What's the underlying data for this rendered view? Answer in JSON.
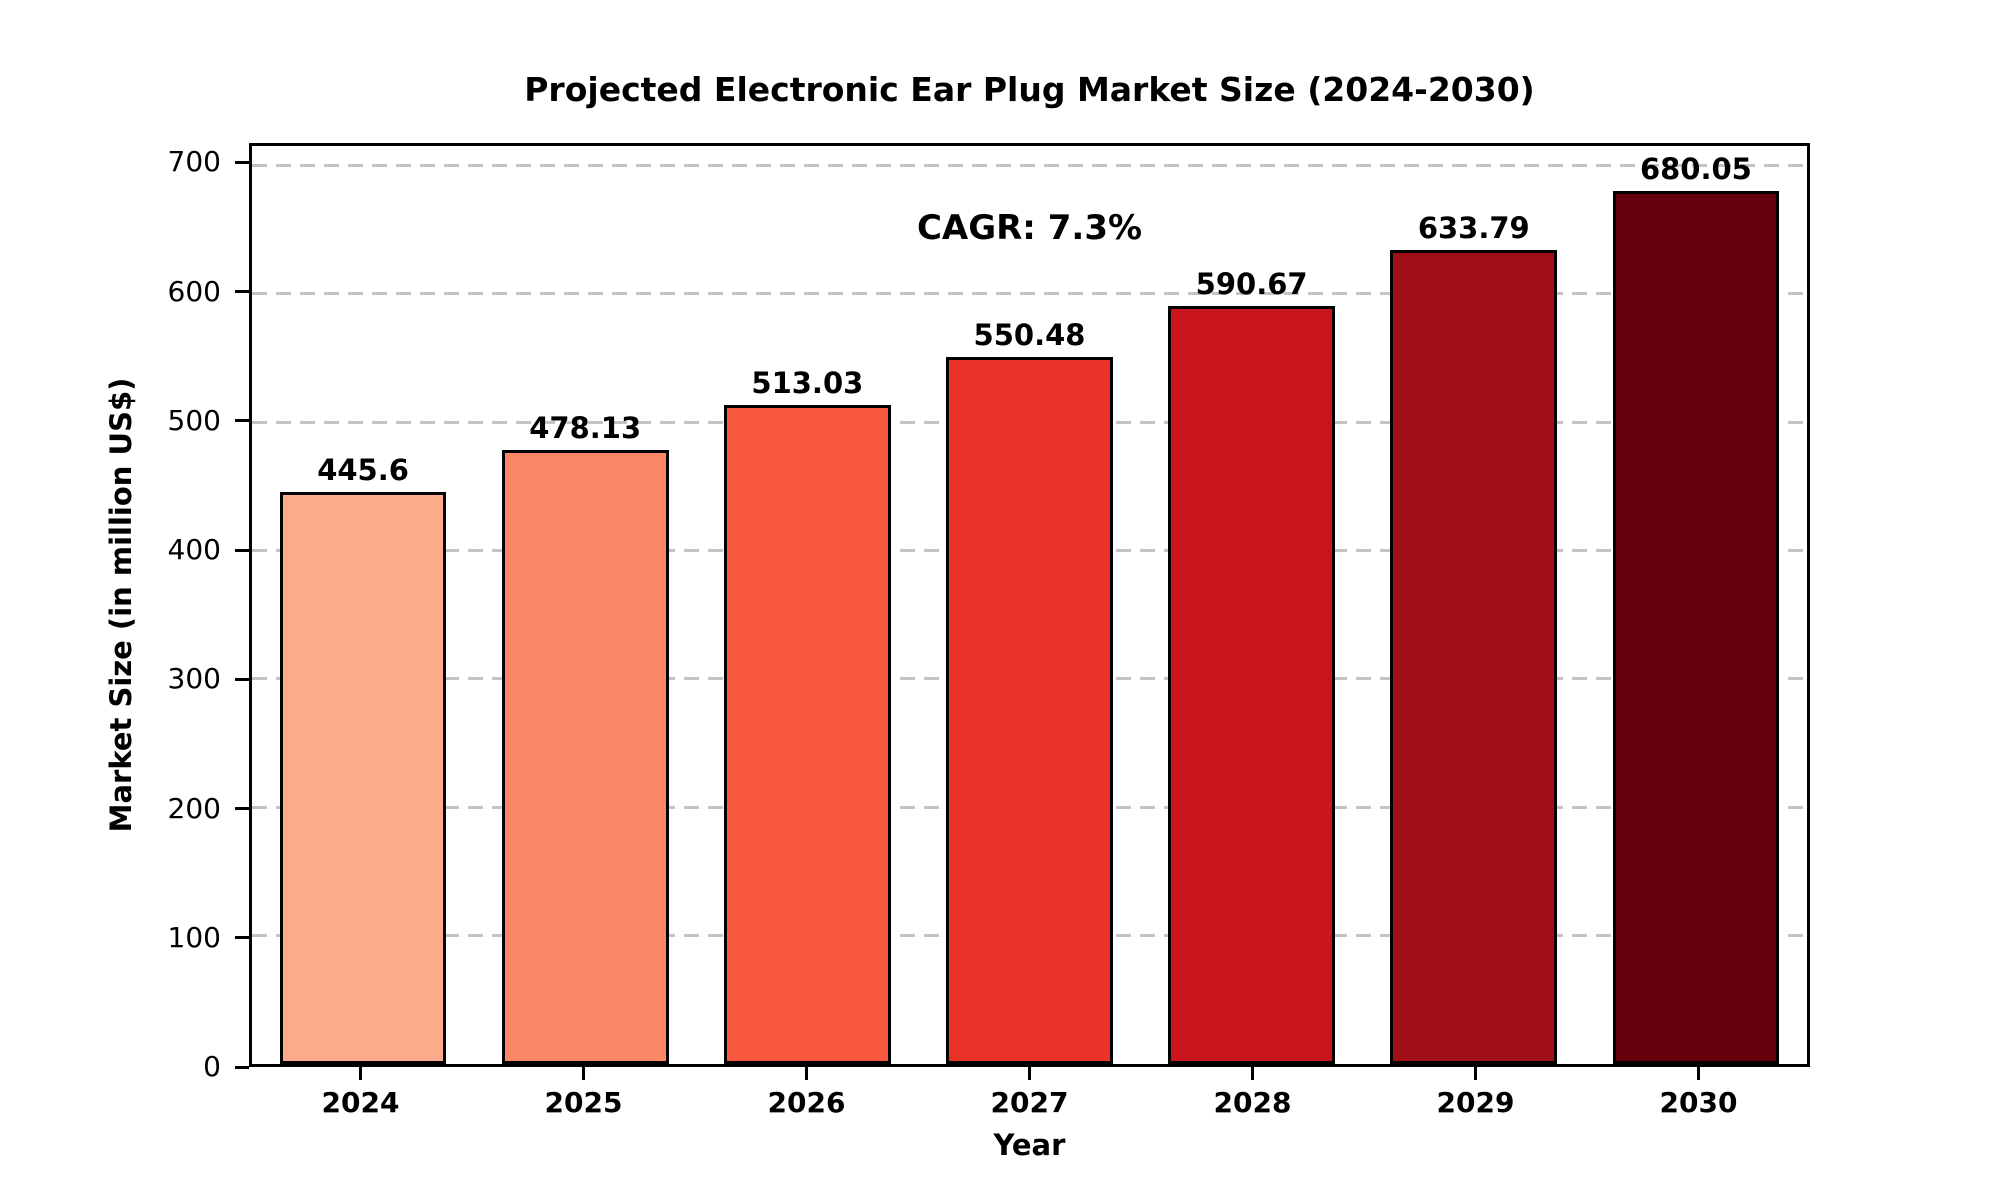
{
  "chart_data": {
    "type": "bar",
    "title": "Projected Electronic Ear Plug Market Size (2024-2030)",
    "annotation": "CAGR: 7.3%",
    "xlabel": "Year",
    "ylabel": "Market Size (in million US$)",
    "categories": [
      "2024",
      "2025",
      "2026",
      "2027",
      "2028",
      "2029",
      "2030"
    ],
    "values": [
      445.6,
      478.13,
      513.03,
      550.48,
      590.67,
      633.79,
      680.05
    ],
    "value_labels": [
      "445.6",
      "478.13",
      "513.03",
      "550.48",
      "590.67",
      "633.79",
      "680.05"
    ],
    "bar_colors": [
      "#FBAB8C",
      "#FB8767",
      "#F8593C",
      "#E93228",
      "#C8161C",
      "#A00F16",
      "#67000D"
    ],
    "bar_edge_color": "#000000",
    "yticks": [
      0,
      100,
      200,
      300,
      400,
      500,
      600,
      700
    ],
    "ylim": [
      0,
      715
    ],
    "grid": {
      "axis": "y",
      "style": "dashed",
      "color": "#C3C3C3"
    },
    "legend": "none",
    "background": "#FFFFFF"
  }
}
